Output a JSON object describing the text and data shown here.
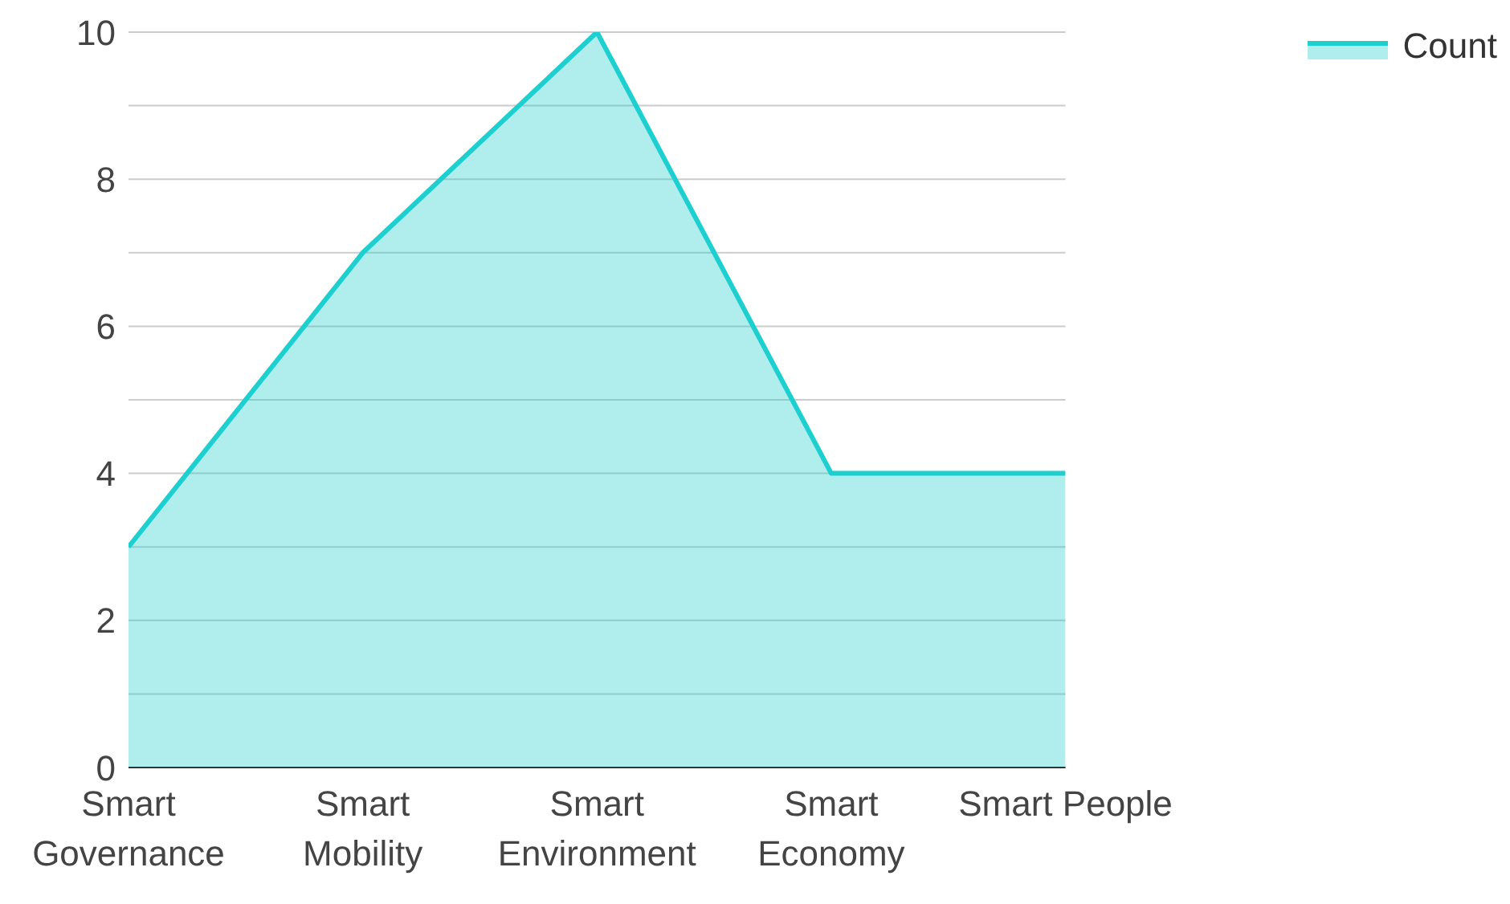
{
  "chart_data": {
    "type": "area",
    "categories": [
      "Smart Governance",
      "Smart Mobility",
      "Smart Environment",
      "Smart Economy",
      "Smart People"
    ],
    "series": [
      {
        "name": "Count",
        "color": "#1ecfcf",
        "values": [
          3,
          7,
          10,
          4,
          4
        ]
      }
    ],
    "ylim": [
      0,
      10
    ],
    "yticks": [
      0,
      {
        "value": 1,
        "label": null
      },
      2,
      {
        "value": 3,
        "label": null
      },
      4,
      {
        "value": 5,
        "label": null
      },
      6,
      {
        "value": 7,
        "label": null
      },
      8,
      {
        "value": 9,
        "label": null
      },
      10
    ],
    "grid": "y",
    "legend": "top right"
  }
}
